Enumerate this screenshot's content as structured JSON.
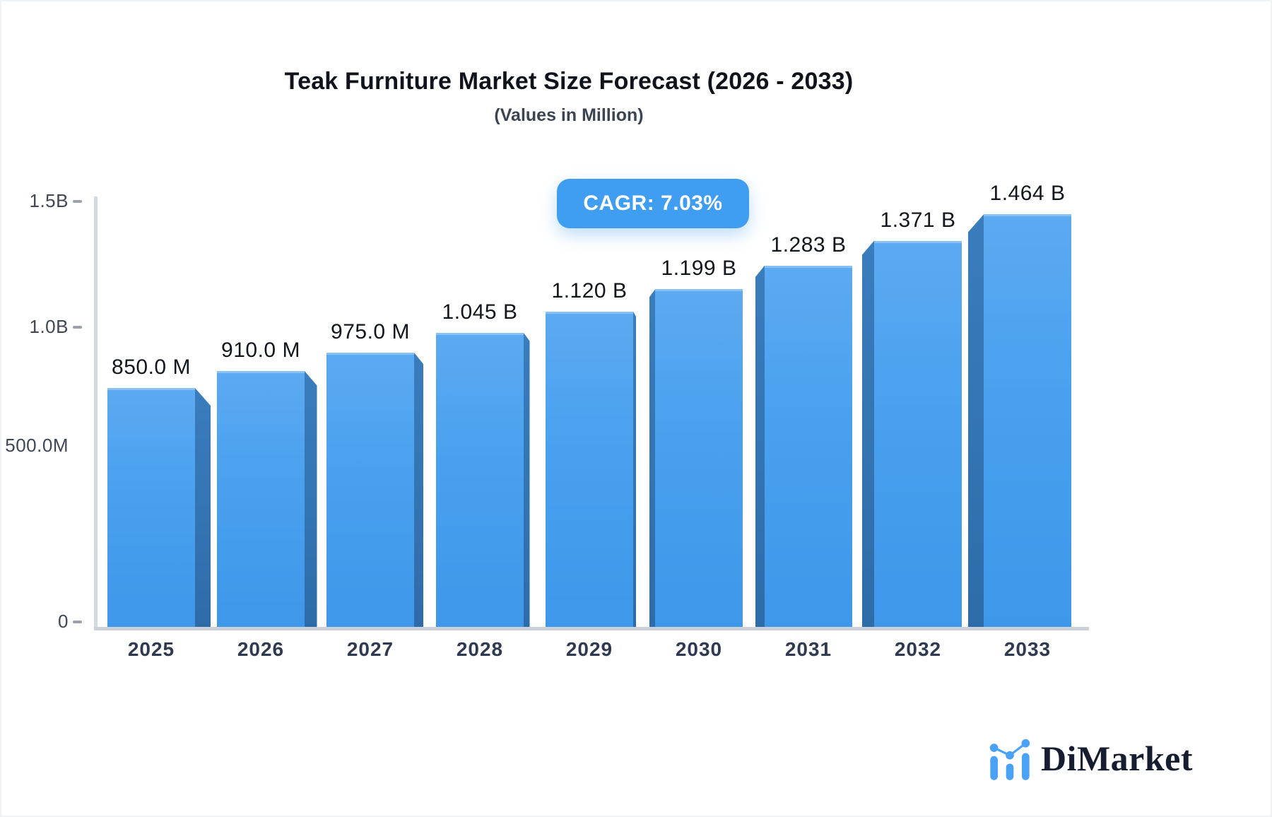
{
  "title": "Teak Furniture Market Size Forecast (2026 - 2033)",
  "subtitle": "(Values in Million)",
  "cagr_badge": "CAGR: 7.03%",
  "brand": {
    "name": "DiMarket"
  },
  "colors": {
    "bar_face": "#48a0ee",
    "bar_side": "#2d6ca9",
    "badge_background": "#3f9df2",
    "badge_text": "#ffffff",
    "axis_line": "#cbd1d8",
    "title_text": "#10131c",
    "year_label_text": "#2f3a50",
    "logo_icon_blue": "#4aa2f6",
    "logo_text": "#161d30"
  },
  "chart_data": {
    "type": "bar",
    "title": "Teak Furniture Market Size Forecast (2026 - 2033)",
    "subtitle": "(Values in Million)",
    "categories": [
      "2025",
      "2026",
      "2027",
      "2028",
      "2029",
      "2030",
      "2031",
      "2032",
      "2033"
    ],
    "values_millions": [
      850,
      910,
      975,
      1045,
      1120,
      1199,
      1283,
      1371,
      1464
    ],
    "bar_labels": [
      "850.0 M",
      "910.0 M",
      "975.0 M",
      "1.045 B",
      "1.120 B",
      "1.199 B",
      "1.283 B",
      "1.371 B",
      "1.464 B"
    ],
    "series_name": "Teak Furniture Market Size",
    "cagr_percent": 7.03,
    "xlabel": "",
    "ylabel": "",
    "y_ticks": [
      "1.5B",
      "1.0B",
      "500.0M",
      "0"
    ],
    "ylim_millions": [
      0,
      1510
    ],
    "grid": false,
    "legend": false,
    "style_3d": true
  }
}
